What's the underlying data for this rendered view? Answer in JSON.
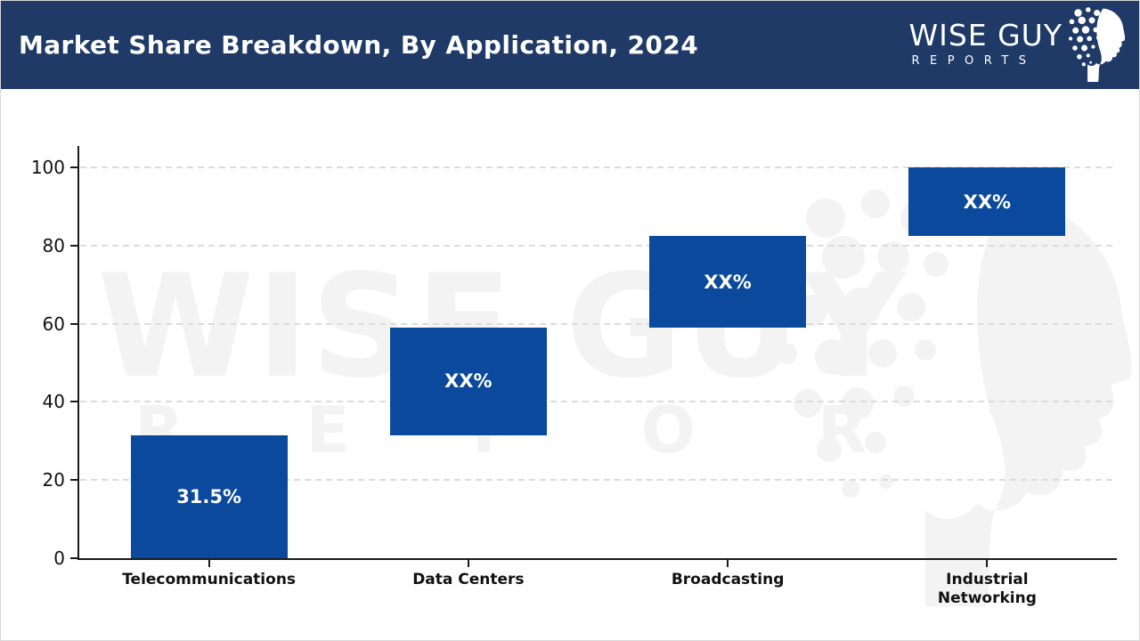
{
  "header": {
    "title": "Market Share Breakdown, By Application, 2024",
    "logo": {
      "line1": "WISE GUY",
      "line2": "REPORTS"
    }
  },
  "watermark": {
    "line1": "WISE GUY",
    "line2": "R E P O R T S"
  },
  "chart_data": {
    "type": "bar",
    "subtype": "waterfall",
    "title": "Market Share Breakdown, By Application, 2024",
    "categories": [
      "Telecommunications",
      "Data Centers",
      "Broadcasting",
      "Industrial Networking"
    ],
    "category_label_lines": [
      [
        "Telecommunications"
      ],
      [
        "Data Centers"
      ],
      [
        "Broadcasting"
      ],
      [
        "Industrial",
        "Networking"
      ]
    ],
    "segments": [
      {
        "category": "Telecommunications",
        "start": 0,
        "end": 31.5,
        "value": 31.5,
        "label": "31.5%"
      },
      {
        "category": "Data Centers",
        "start": 31.5,
        "end": 59,
        "value": 27.5,
        "label": "XX%"
      },
      {
        "category": "Broadcasting",
        "start": 59,
        "end": 82.5,
        "value": 23.5,
        "label": "XX%"
      },
      {
        "category": "Industrial Networking",
        "start": 82.5,
        "end": 100,
        "value": 17.5,
        "label": "XX%"
      }
    ],
    "yticks": [
      0,
      20,
      40,
      60,
      80,
      100
    ],
    "ylim": [
      0,
      105.5
    ],
    "xlabel": "",
    "ylabel": "",
    "grid": "horizontal-dashed",
    "legend": "none",
    "colors": {
      "bar": "#0a499c",
      "bar_label": "#ffffff",
      "axis": "#1a1a1a",
      "grid": "#dcdcdc",
      "header_bg": "#1f3a66",
      "watermark": "#f3f3f4"
    }
  }
}
